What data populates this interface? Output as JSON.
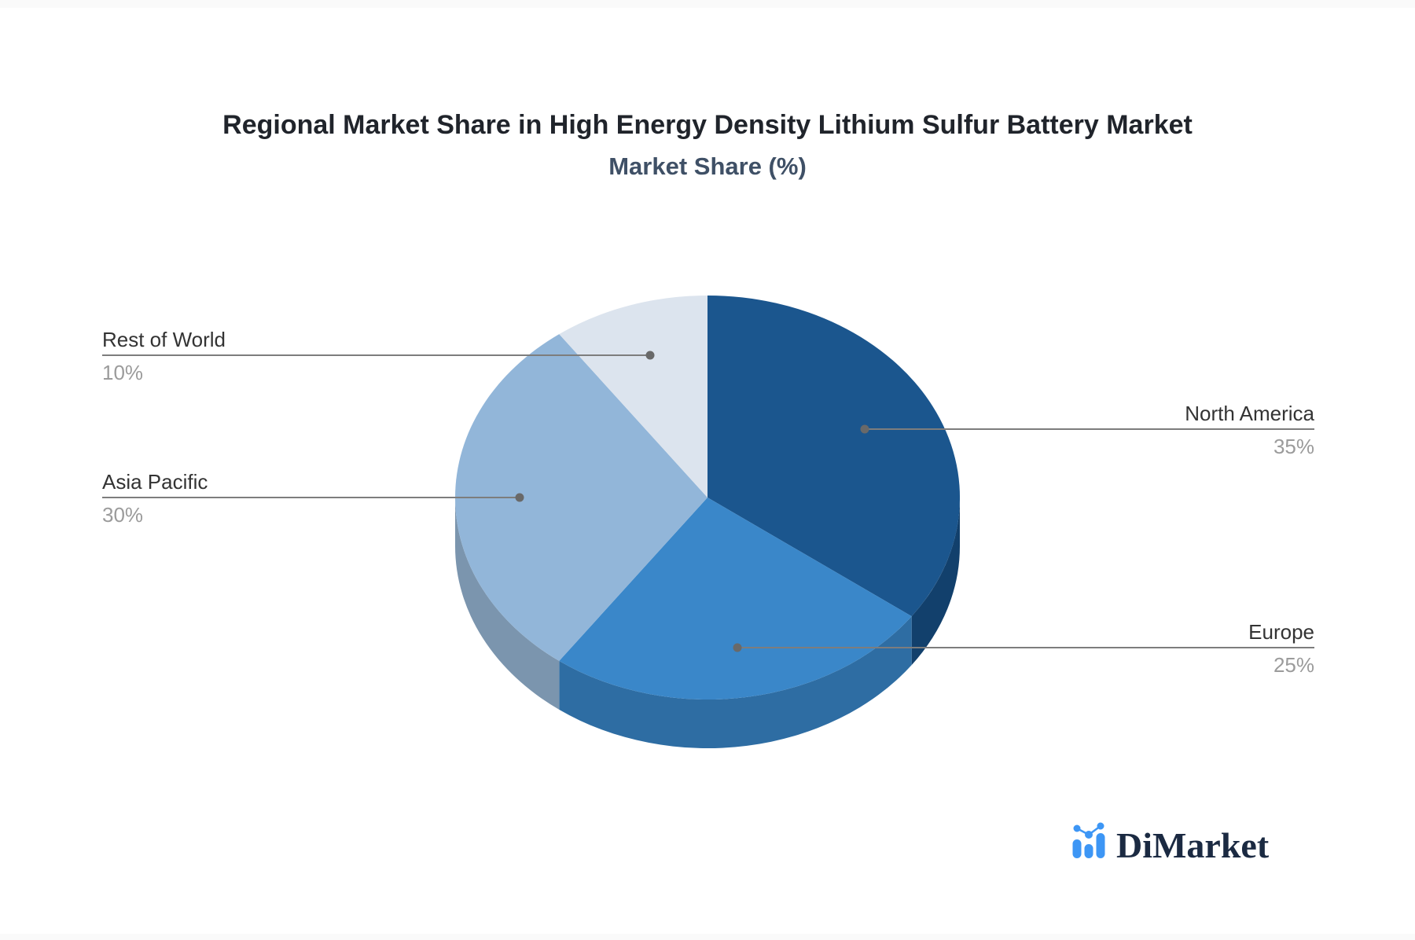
{
  "header": {
    "title": "Regional Market Share in High Energy Density Lithium Sulfur Battery Market",
    "subtitle": "Market Share (%)"
  },
  "chart_data": {
    "type": "pie",
    "title": "Regional Market Share in High Energy Density Lithium Sulfur Battery Market",
    "subtitle": "Market Share (%)",
    "unit": "%",
    "start": "top",
    "direction": "clockwise",
    "style": "3d-depth",
    "labels": [
      "North America",
      "Europe",
      "Asia Pacific",
      "Rest of World"
    ],
    "values": [
      35,
      25,
      30,
      10
    ],
    "colors_top": [
      "#1b568e",
      "#3a87c9",
      "#92b6d9",
      "#dce4ee"
    ],
    "colors_side": [
      "#12406c",
      "#2e6da3",
      "#7b95ae",
      "#c3ccd9"
    ],
    "legend_position": "callout-lines",
    "background": "#ffffff",
    "leader_line_color": "#7d7d7d",
    "label_color": "#333333",
    "percent_color": "#9b9b9b"
  },
  "callouts": {
    "north_america": {
      "label": "North America",
      "pct": "35%"
    },
    "europe": {
      "label": "Europe",
      "pct": "25%"
    },
    "asia_pacific": {
      "label": "Asia Pacific",
      "pct": "30%"
    },
    "rest_of_world": {
      "label": "Rest of World",
      "pct": "10%"
    }
  },
  "logo": {
    "text": "DiMarket",
    "icon": "bar-line-chart-icon",
    "icon_color": "#3d96f5",
    "text_color": "#1b2a42"
  }
}
